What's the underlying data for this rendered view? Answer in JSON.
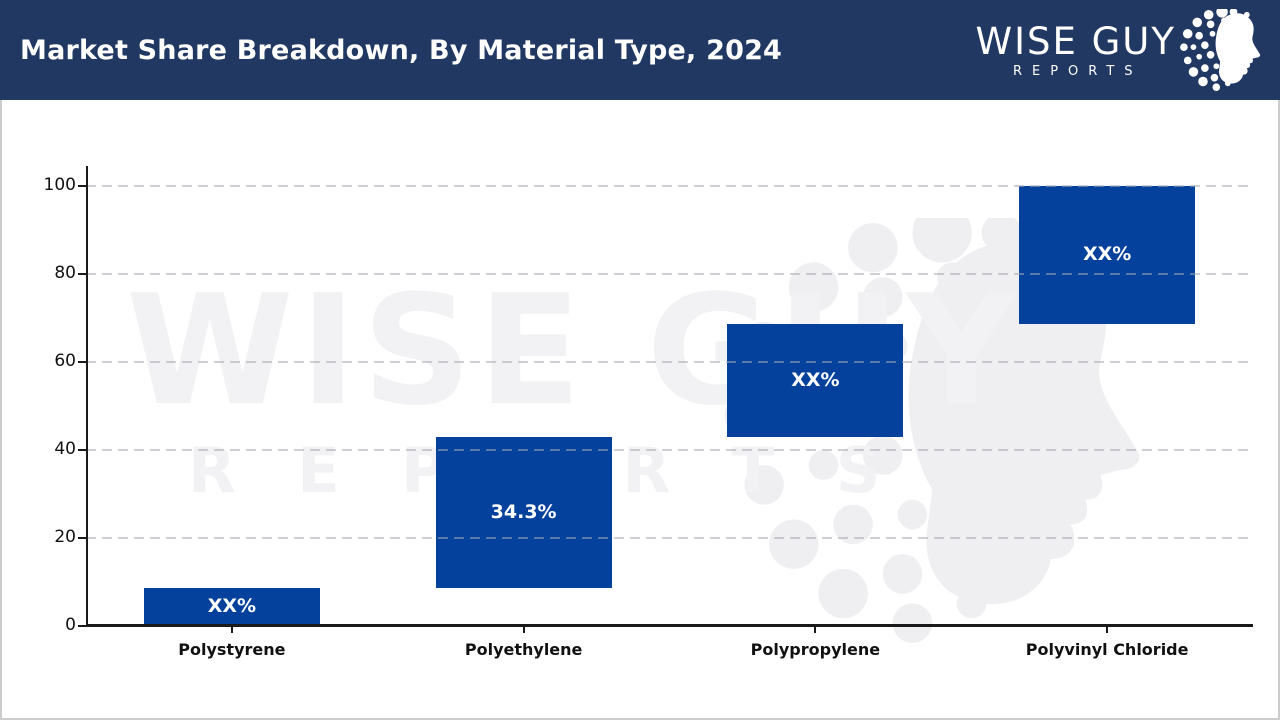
{
  "header": {
    "title": "Market Share Breakdown, By Material Type, 2024",
    "logo": {
      "wordmark": "WISE GUY",
      "sub": "REPORTS"
    }
  },
  "watermark": {
    "wordmark": "WISE GUY",
    "sub": "R E P O R T S"
  },
  "colors": {
    "header_bg": "#213863",
    "bar": "#04419c",
    "bar_label": "#ffffff",
    "axis": "#1a1a1a",
    "grid": "#d7d7da",
    "border": "#cccccc",
    "watermark": "#f2f2f4"
  },
  "chart_data": {
    "type": "waterfall",
    "title": "Market Share Breakdown, By Material Type, 2024",
    "categories": [
      "Polystyrene",
      "Polyethylene",
      "Polypropylene",
      "Polyvinyl Chloride"
    ],
    "segments": [
      {
        "category": "Polystyrene",
        "start": 0,
        "end": 8.6,
        "value": 8.6,
        "label": "XX%"
      },
      {
        "category": "Polyethylene",
        "start": 8.6,
        "end": 42.9,
        "value": 34.3,
        "label": "34.3%"
      },
      {
        "category": "Polypropylene",
        "start": 42.9,
        "end": 68.6,
        "value": 25.7,
        "label": "XX%"
      },
      {
        "category": "Polyvinyl Chloride",
        "start": 68.6,
        "end": 100,
        "value": 31.4,
        "label": "XX%"
      }
    ],
    "y_axis": {
      "ticks": [
        0,
        20,
        40,
        60,
        80,
        100
      ],
      "lim": [
        0,
        105
      ]
    },
    "grid": {
      "visible": true,
      "style": "dashed",
      "orientation": "horizontal"
    },
    "legend": null,
    "xlabel": "",
    "ylabel": ""
  }
}
